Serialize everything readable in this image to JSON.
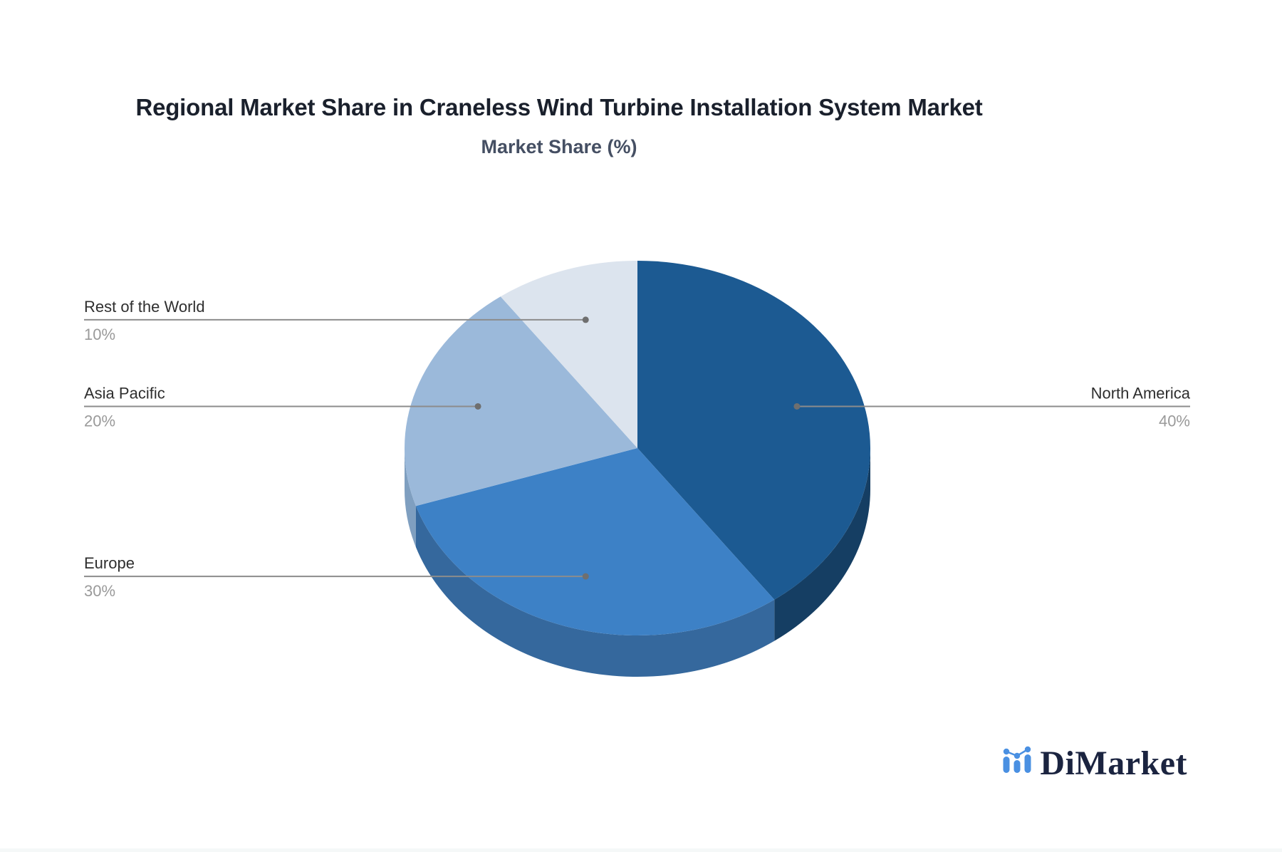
{
  "chart_data": {
    "type": "pie",
    "style": "3d",
    "title": "Regional Market Share in Craneless Wind Turbine Installation System Market",
    "subtitle": "Market Share (%)",
    "unit": "%",
    "start_angle_deg": 0,
    "direction": "clockwise",
    "legend": "none",
    "slices": [
      {
        "label": "North America",
        "value": 40,
        "display": "40%",
        "color": "#1c5a92",
        "side_color": "#153e63",
        "label_side": "right"
      },
      {
        "label": "Europe",
        "value": 30,
        "display": "30%",
        "color": "#3d81c6",
        "side_color": "#35689d",
        "label_side": "left"
      },
      {
        "label": "Asia Pacific",
        "value": 20,
        "display": "20%",
        "color": "#9bb9da",
        "side_color": "#7f9fc0",
        "label_side": "left"
      },
      {
        "label": "Rest of the World",
        "value": 10,
        "display": "10%",
        "color": "#dce4ee",
        "side_color": "#b6c2d2",
        "label_side": "left"
      }
    ],
    "label_style": {
      "name_color": "#2e2e2e",
      "value_color": "#9a9a9a",
      "line_color": "#8c8c8c",
      "dot_color": "#6f6f6f"
    }
  },
  "branding": {
    "logo_text": "DiMarket",
    "logo_icon": "bar-chart-sparkline-icon",
    "logo_text_color": "#1b2440",
    "logo_icon_color": "#4a90e2"
  }
}
